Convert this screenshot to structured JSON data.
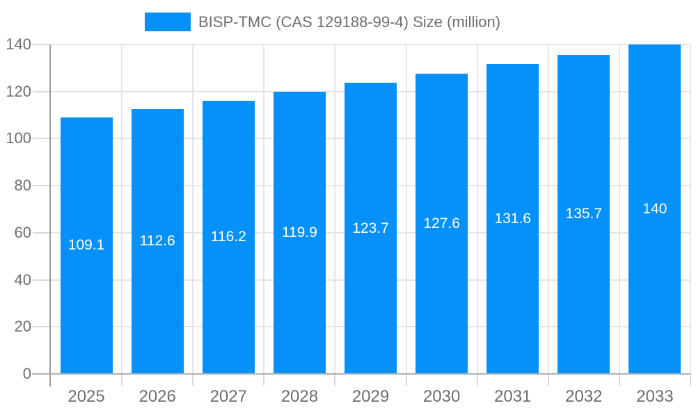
{
  "chart_data": {
    "type": "bar",
    "title": "BISP-TMC (CAS 129188-99-4) Size (million)",
    "categories": [
      "2025",
      "2026",
      "2027",
      "2028",
      "2029",
      "2030",
      "2031",
      "2032",
      "2033"
    ],
    "values": [
      109.1,
      112.6,
      116.2,
      119.9,
      123.7,
      127.6,
      131.6,
      135.7,
      140
    ],
    "value_labels": [
      "109.1",
      "112.6",
      "116.2",
      "119.9",
      "123.7",
      "127.6",
      "131.6",
      "135.7",
      "140"
    ],
    "xlabel": "",
    "ylabel": "",
    "ylim": [
      0,
      140
    ],
    "yticks": [
      0,
      20,
      40,
      60,
      80,
      100,
      120,
      140
    ],
    "grid": true,
    "legend_position": "top"
  },
  "legend": {
    "label": "BISP-TMC (CAS 129188-99-4) Size (million)"
  },
  "colors": {
    "bar": "#0691fa",
    "value_label": "#ffffff",
    "y_axis_line": "#999999",
    "x_axis_line": "#b0b0b0",
    "gridline": "#e4e4e4",
    "tick": "#d9d9d9",
    "tick_label": "#6e6e6e",
    "legend_text": "#6e6e6e",
    "background": "#ffffff"
  }
}
